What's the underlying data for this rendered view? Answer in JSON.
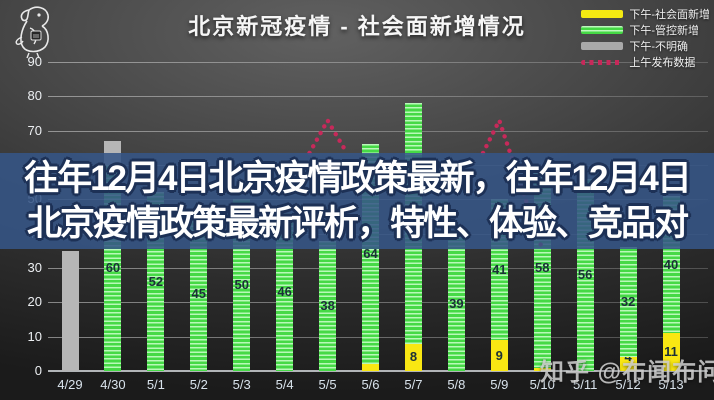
{
  "title": "北京新冠疫情 - 社会面新增情况",
  "overlay": {
    "line1": "往年12月4日北京疫情政策最新，往年12月4日",
    "line2": "北京疫情政策最新评析，特性、体验、竞品对"
  },
  "watermark": "知乎 @布闻布问",
  "legend": [
    {
      "label": "下午-社会面新增",
      "swatch": "yellow-solid"
    },
    {
      "label": "下午-管控新增",
      "swatch": "green-striped"
    },
    {
      "label": "下午-不明确",
      "swatch": "gray-solid"
    },
    {
      "label": "上午发布数据",
      "swatch": "red-dotted"
    }
  ],
  "colors": {
    "yellow": "#f9e713",
    "green": "#46d946",
    "gray": "#b6b6b6",
    "red_line": "#c7295a",
    "banner": "#35568833",
    "background": "#3c3c3c"
  },
  "chart_data": {
    "type": "bar",
    "stacked": true,
    "title": "北京新冠疫情 - 社会面新增情况",
    "xlabel": "",
    "ylabel": "",
    "ylim": [
      0,
      90
    ],
    "yticks": [
      0,
      10,
      20,
      30,
      40,
      50,
      60,
      70,
      80,
      90
    ],
    "grid": true,
    "legend_position": "top-right",
    "categories": [
      "4/29",
      "4/30",
      "5/1",
      "5/2",
      "5/3",
      "5/4",
      "5/5",
      "5/6",
      "5/7",
      "5/8",
      "5/9",
      "5/10",
      "5/11",
      "5/12",
      "5/13"
    ],
    "series": [
      {
        "name": "下午-社会面新增",
        "css": "seg-yellow",
        "show_labels": true,
        "values": [
          0,
          null,
          null,
          null,
          null,
          null,
          null,
          2,
          8,
          0,
          9,
          1,
          0,
          4,
          11
        ]
      },
      {
        "name": "下午-管控新增",
        "css": "seg-green",
        "show_labels": true,
        "values": [
          null,
          60,
          52,
          45,
          50,
          46,
          38,
          64,
          70,
          39,
          41,
          58,
          56,
          32,
          40
        ]
      },
      {
        "name": "下午-不明确",
        "css": "seg-gray",
        "show_labels": false,
        "values": [
          35,
          7,
          null,
          null,
          null,
          null,
          null,
          null,
          null,
          null,
          null,
          null,
          null,
          null,
          null
        ]
      }
    ],
    "morning_line": {
      "name": "上午发布数据",
      "color": "#c7295a",
      "values": [
        null,
        null,
        null,
        null,
        null,
        null,
        73,
        null,
        null,
        null,
        73,
        36,
        null,
        null,
        null
      ],
      "note": "mostly hidden behind banner; visible peaks at 5/5 and 5/9, one dot at 5/10",
      "visible_segments": [
        [
          [
            5.58,
            63.5
          ],
          [
            6,
            73
          ],
          [
            6.45,
            63.5
          ]
        ],
        [
          [
            9.62,
            63.5
          ],
          [
            10,
            73
          ],
          [
            11,
            35.5
          ]
        ]
      ]
    }
  }
}
